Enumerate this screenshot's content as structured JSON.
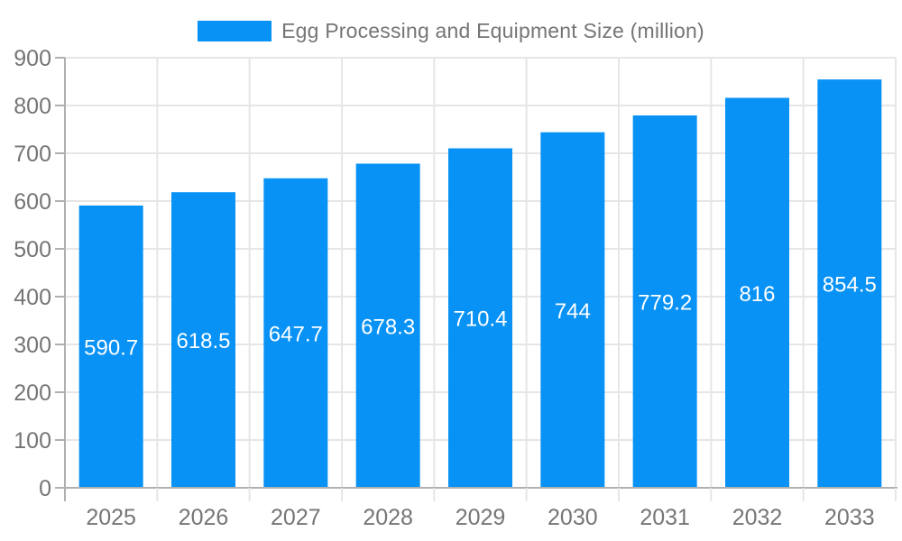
{
  "legend": {
    "label": "Egg Processing and Equipment Size (million)"
  },
  "colors": {
    "bar": "#0892f5",
    "grid": "#e6e6e6",
    "axis": "#b0b0b0",
    "tick_light": "#e6e6e6",
    "text": "#757575",
    "bar_label": "#ffffff",
    "background": "#ffffff"
  },
  "chart_data": {
    "type": "bar",
    "title": "Egg Processing and Equipment Size (million)",
    "categories": [
      "2025",
      "2026",
      "2027",
      "2028",
      "2029",
      "2030",
      "2031",
      "2032",
      "2033"
    ],
    "values": [
      590.7,
      618.5,
      647.7,
      678.3,
      710.4,
      744,
      779.2,
      816,
      854.5
    ],
    "value_labels": [
      "590.7",
      "618.5",
      "647.7",
      "678.3",
      "710.4",
      "744",
      "779.2",
      "816",
      "854.5"
    ],
    "xlabel": "",
    "ylabel": "",
    "ylim": [
      0,
      900
    ],
    "ytick_step": 100,
    "ytick_labels": [
      "0",
      "100",
      "200",
      "300",
      "400",
      "500",
      "600",
      "700",
      "800",
      "900"
    ],
    "grid": true,
    "legend_position": "top",
    "bar_label_position": "middle"
  }
}
